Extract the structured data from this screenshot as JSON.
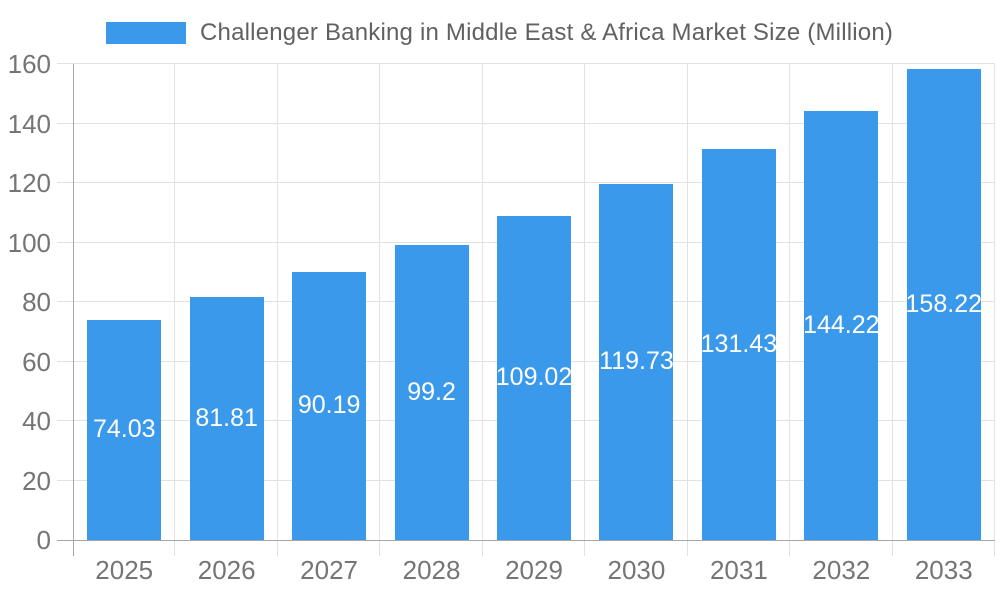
{
  "legend": {
    "label": "Challenger Banking in Middle East & Africa Market Size (Million)",
    "swatch_color": "#3B99EC"
  },
  "chart_data": {
    "type": "bar",
    "title": "Challenger Banking in Middle East & Africa Market Size (Million)",
    "categories": [
      "2025",
      "2026",
      "2027",
      "2028",
      "2029",
      "2030",
      "2031",
      "2032",
      "2033"
    ],
    "values": [
      74.03,
      81.81,
      90.19,
      99.2,
      109.02,
      119.73,
      131.43,
      144.22,
      158.22
    ],
    "value_labels": [
      "74.03",
      "81.81",
      "90.19",
      "99.2",
      "109.02",
      "119.73",
      "131.43",
      "144.22",
      "158.22"
    ],
    "xlabel": "",
    "ylabel": "",
    "ylim": [
      0,
      160
    ],
    "yticks": [
      0,
      20,
      40,
      60,
      80,
      100,
      120,
      140,
      160
    ],
    "grid": true,
    "legend_position": "top",
    "colors": {
      "bar": "#3B99EC",
      "bar_label": "#ffffff",
      "axis_line": "#a6a6a6",
      "gridline": "#e2e2e2",
      "tick_label": "#757575",
      "legend_text": "#616161",
      "background": "#ffffff"
    }
  }
}
